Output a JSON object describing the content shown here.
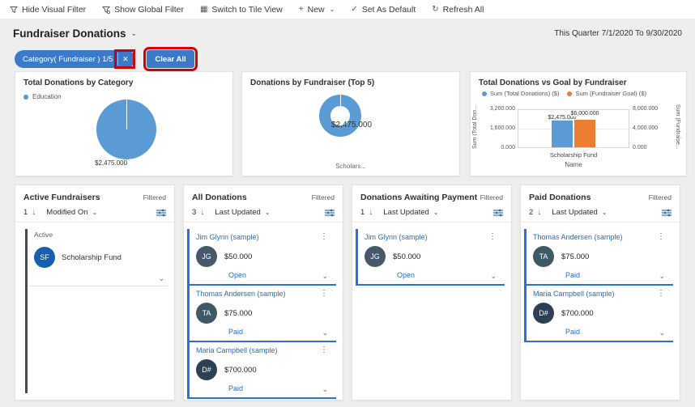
{
  "colors": {
    "accent": "#2a6bc0",
    "chip_blue": "#3b7ac9",
    "chart_blue": "#5b9bd5",
    "chart_orange": "#ed7d31"
  },
  "toolbar": {
    "hide_visual_filter": "Hide Visual Filter",
    "show_global_filter": "Show Global Filter",
    "switch_to_tile_view": "Switch to Tile View",
    "new": "New",
    "set_as_default": "Set As Default",
    "refresh_all": "Refresh All"
  },
  "header": {
    "title": "Fundraiser Donations",
    "date_range": "This Quarter 7/1/2020 To 9/30/2020"
  },
  "filter_bar": {
    "chip_label": "Category( Fundraiser ) 1/5",
    "chip_close": "✕",
    "clear_all": "Clear All"
  },
  "chart_data": [
    {
      "type": "pie",
      "title": "Total Donations by Category",
      "legend": [
        "Education"
      ],
      "categories": [
        "Education"
      ],
      "values": [
        2475
      ],
      "data_label": "$2,475.000"
    },
    {
      "type": "donut",
      "title": "Donations by Fundraiser (Top 5)",
      "categories": [
        "Scholarship Fund"
      ],
      "values": [
        2475
      ],
      "center_label": "$2,475.000",
      "bottom_label": "Scholars..."
    },
    {
      "type": "bar",
      "title": "Total Donations vs Goal by Fundraiser",
      "categories": [
        "Scholarship Fund"
      ],
      "series": [
        {
          "name": "Sum (Total Donations) ($)",
          "values": [
            2475
          ],
          "color": "#5b9bd5",
          "axis": "left",
          "data_label": "$2,475.000"
        },
        {
          "name": "Sum (Fundraiser Goal) ($)",
          "values": [
            6000
          ],
          "color": "#ed7d31",
          "axis": "right",
          "data_label": "$6,000.000"
        }
      ],
      "left_axis": {
        "label": "Sum (Total Don...",
        "ticks": [
          "3,200.000",
          "1,600.000",
          "0.000"
        ],
        "max": 3200
      },
      "right_axis": {
        "label": "Sum (Fundraise...",
        "ticks": [
          "8,000.000",
          "4,000.000",
          "0.000"
        ],
        "max": 8000
      },
      "xlabel": "Name"
    }
  ],
  "columns": [
    {
      "title": "Active Fundraisers",
      "filtered": "Filtered",
      "count": "1",
      "sort_field": "Modified On",
      "group": "Active",
      "cards": [
        {
          "initials": "SF",
          "name": "Scholarship Fund",
          "avatar_color": "#155fb0"
        }
      ]
    },
    {
      "title": "All Donations",
      "filtered": "Filtered",
      "count": "3",
      "sort_field": "Last Updated",
      "cards": [
        {
          "name": "Jim Glynn (sample)",
          "initials": "JG",
          "amount": "$50.000",
          "status": "Open",
          "avatar_color": "#47586d"
        },
        {
          "name": "Thomas Andersen (sample)",
          "initials": "TA",
          "amount": "$75.000",
          "status": "Paid",
          "avatar_color": "#3f5866"
        },
        {
          "name": "Maria Campbell (sample)",
          "initials": "D#",
          "amount": "$700.000",
          "status": "Paid",
          "avatar_color": "#2d3f55"
        }
      ]
    },
    {
      "title": "Donations Awaiting Payment",
      "filtered": "Filtered",
      "count": "1",
      "sort_field": "Last Updated",
      "cards": [
        {
          "name": "Jim Glynn (sample)",
          "initials": "JG",
          "amount": "$50.000",
          "status": "Open",
          "avatar_color": "#47586d"
        }
      ]
    },
    {
      "title": "Paid Donations",
      "filtered": "Filtered",
      "count": "2",
      "sort_field": "Last Updated",
      "cards": [
        {
          "name": "Thomas Andersen (sample)",
          "initials": "TA",
          "amount": "$75.000",
          "status": "Paid",
          "avatar_color": "#3f5866"
        },
        {
          "name": "Maria Campbell (sample)",
          "initials": "D#",
          "amount": "$700.000",
          "status": "Paid",
          "avatar_color": "#2d3f55"
        }
      ]
    }
  ]
}
